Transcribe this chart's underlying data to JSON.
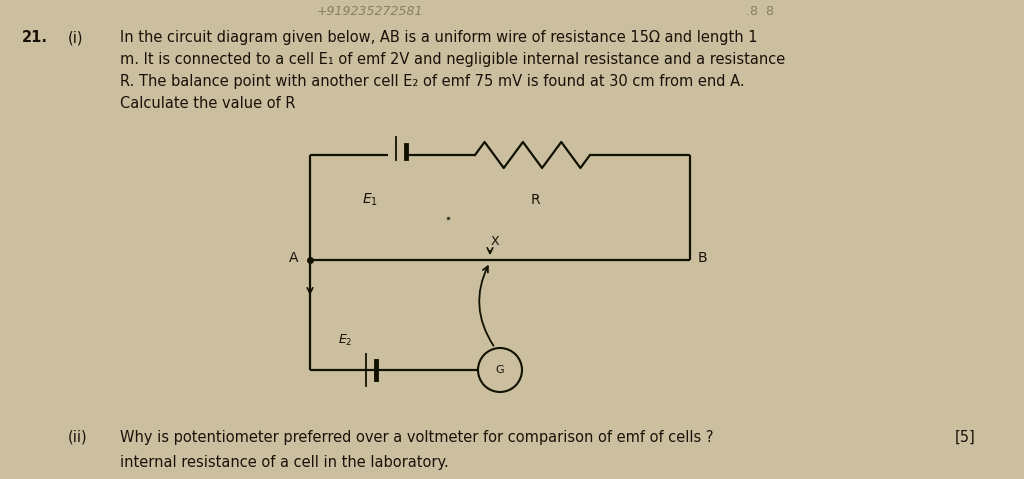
{
  "background_color": "#cbbfa0",
  "title_number": "21.",
  "part_i_label": "(i)",
  "main_text_line1": "In the circuit diagram given below, AB is a uniform wire of resistance 15Ω and length 1",
  "main_text_line2": "m. It is connected to a cell E₁ of emf 2V and negligible internal resistance and a resistance",
  "main_text_line3": "R. The balance point with another cell E₂ of emf 75 mV is found at 30 cm from end A.",
  "main_text_line4": "Calculate the value of R",
  "part_ii_label": "(ii)",
  "part_ii_text": "Why is potentiometer preferred over a voltmeter for comparison of emf of cells ?",
  "part_ii_marks": "[5]",
  "part_ii_text2": "internal resistance of a cell in the laboratory.",
  "header_text": "+919235272581",
  "header_right": ".8  8",
  "text_color": "#1a1209",
  "font_size_main": 10.5
}
